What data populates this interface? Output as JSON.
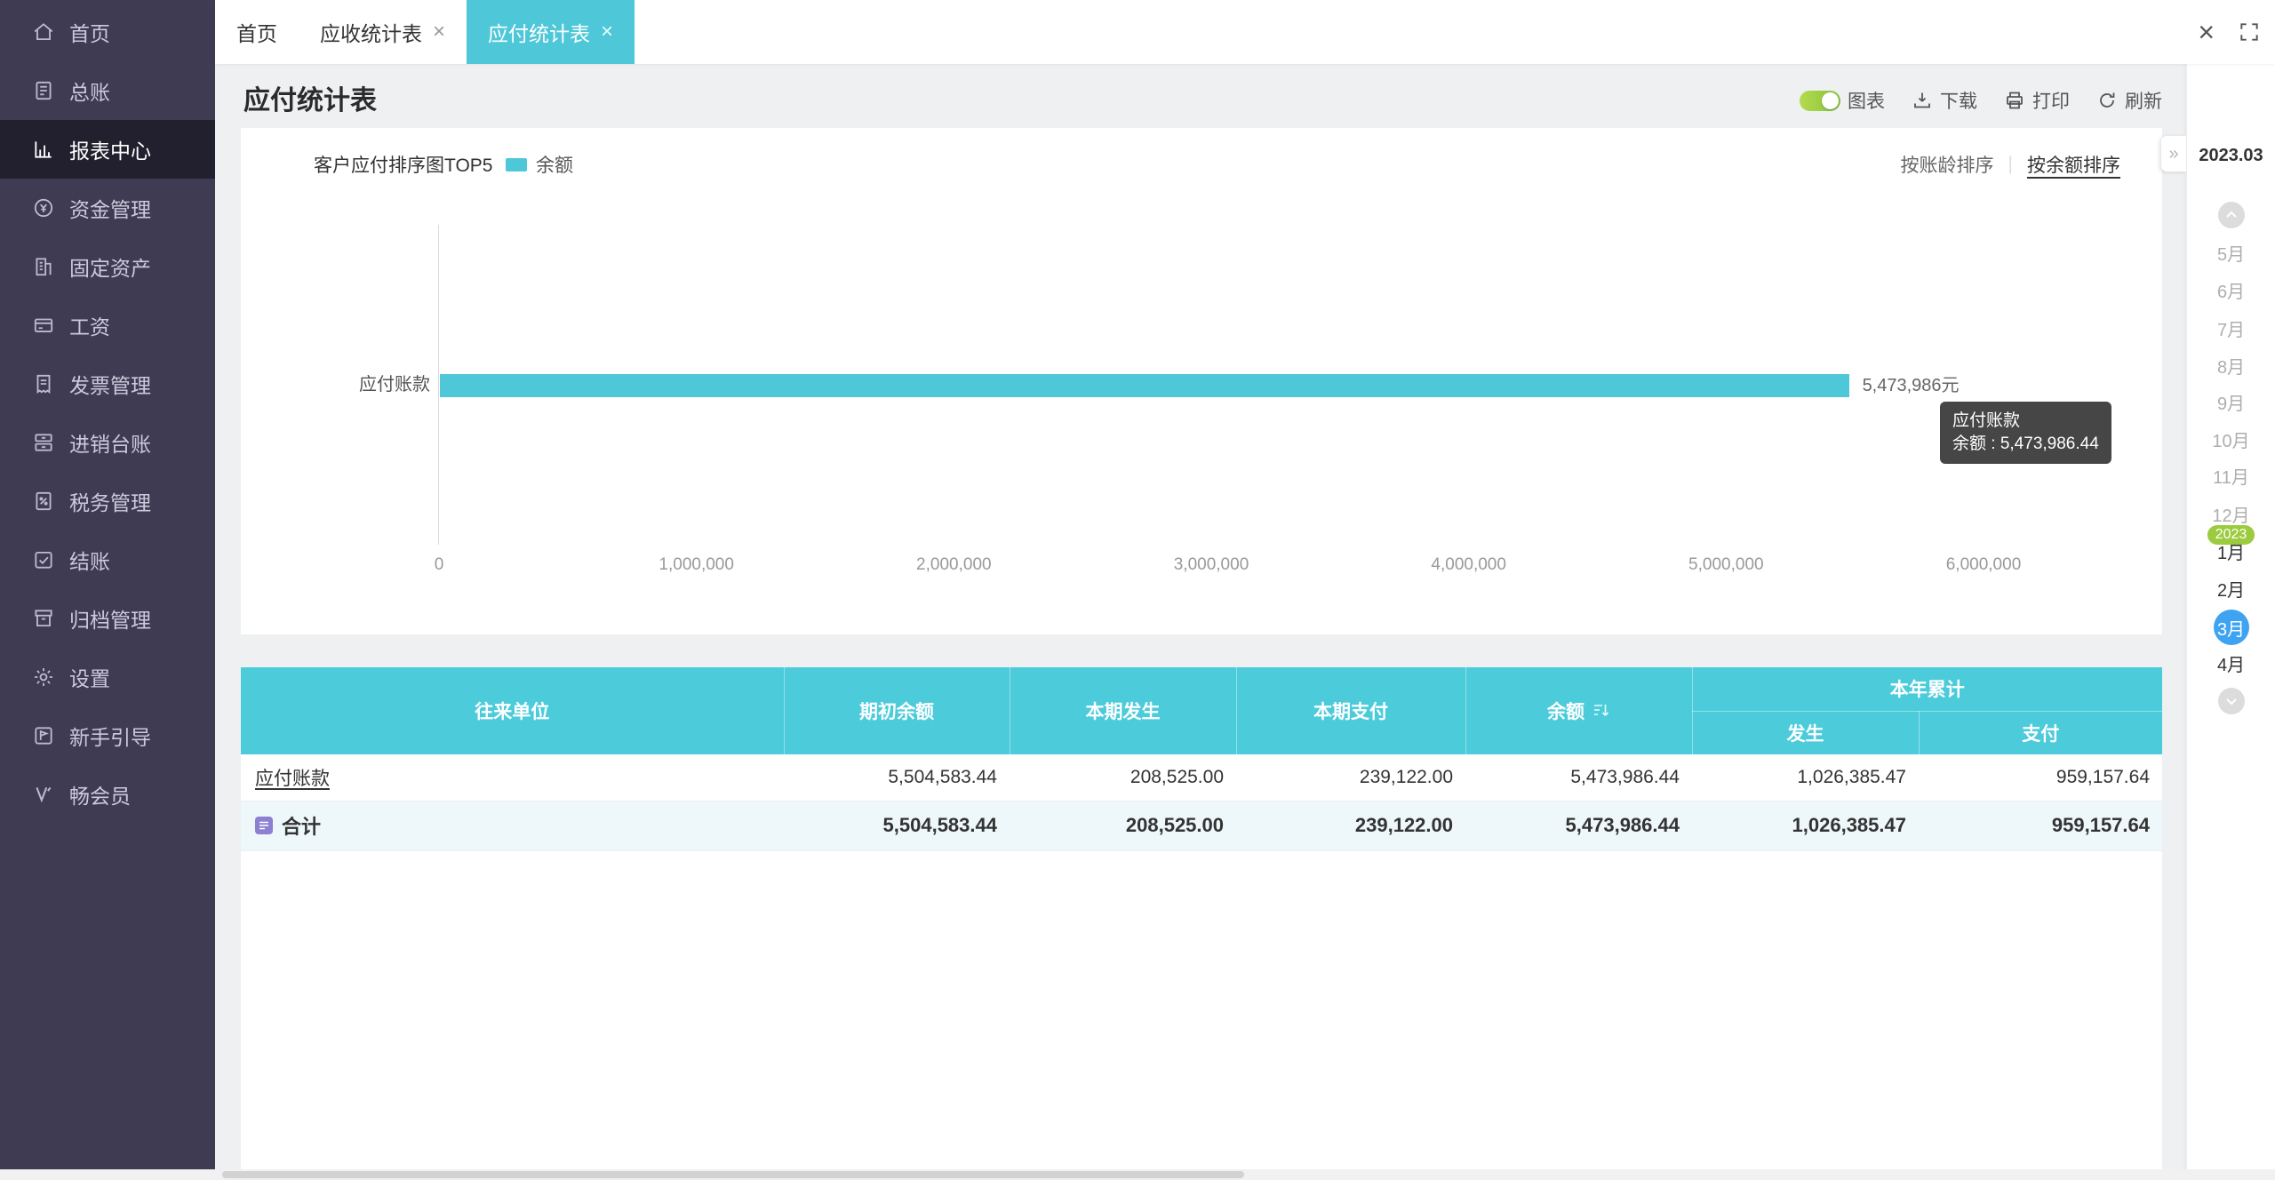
{
  "colors": {
    "accent": "#4ec7d8",
    "toggle_green": "#8cc63f",
    "selected_month_blue": "#3ea4f2",
    "year_badge_green": "#9ccb3f",
    "sidebar_bg": "#3e3b52"
  },
  "sidebar": {
    "items": [
      {
        "label": "首页",
        "icon": "home-icon"
      },
      {
        "label": "总账",
        "icon": "ledger-icon"
      },
      {
        "label": "报表中心",
        "icon": "report-icon"
      },
      {
        "label": "资金管理",
        "icon": "fund-icon"
      },
      {
        "label": "固定资产",
        "icon": "asset-icon"
      },
      {
        "label": "工资",
        "icon": "payroll-icon"
      },
      {
        "label": "发票管理",
        "icon": "invoice-icon"
      },
      {
        "label": "进销台账",
        "icon": "inventory-icon"
      },
      {
        "label": "税务管理",
        "icon": "tax-icon"
      },
      {
        "label": "结账",
        "icon": "closing-icon"
      },
      {
        "label": "归档管理",
        "icon": "archive-icon"
      },
      {
        "label": "设置",
        "icon": "settings-icon"
      },
      {
        "label": "新手引导",
        "icon": "guide-icon"
      },
      {
        "label": "畅会员",
        "icon": "member-icon"
      }
    ]
  },
  "tabbar": {
    "tabs": [
      {
        "label": "首页",
        "close": ""
      },
      {
        "label": "应收统计表",
        "close": "×"
      },
      {
        "label": "应付统计表",
        "close": "×"
      }
    ],
    "window_close_glyph": "×"
  },
  "page": {
    "title": "应付统计表",
    "toggle_label": "图表",
    "download_label": "下载",
    "print_label": "打印",
    "refresh_label": "刷新"
  },
  "chart_card": {
    "title": "客户应付排序图TOP5",
    "legend_label": "余额",
    "sort_by_age": "按账龄排序",
    "sort_sep": "|",
    "sort_by_balance": "按余额排序",
    "bar_value_label": "5,473,986元",
    "tooltip_title": "应付账款",
    "tooltip_line": "余额 : 5,473,986.44"
  },
  "chart_data": {
    "type": "bar",
    "orientation": "horizontal",
    "title": "客户应付排序图TOP5",
    "categories": [
      "应付账款"
    ],
    "series": [
      {
        "name": "余额",
        "values": [
          5473986.44
        ]
      }
    ],
    "xlim": [
      0,
      6000000
    ],
    "x_ticks": [
      "0",
      "1,000,000",
      "2,000,000",
      "3,000,000",
      "4,000,000",
      "5,000,000",
      "6,000,000"
    ],
    "grid": false,
    "legend_position": "top"
  },
  "table": {
    "col_company": "往来单位",
    "col_opening": "期初余额",
    "col_incurred": "本期发生",
    "col_paid": "本期支付",
    "col_balance": "余额",
    "col_ytd": "本年累计",
    "col_ytd_incurred": "发生",
    "col_ytd_paid": "支付",
    "rows": [
      {
        "company": "应付账款",
        "cells": [
          "5,504,583.44",
          "208,525.00",
          "239,122.00",
          "5,473,986.44",
          "1,026,385.47",
          "959,157.64"
        ]
      }
    ],
    "total": {
      "label": "合计",
      "cells": [
        "5,504,583.44",
        "208,525.00",
        "239,122.00",
        "5,473,986.44",
        "1,026,385.47",
        "959,157.64"
      ]
    }
  },
  "month_panel": {
    "current": "2023.03",
    "handle_glyph": "»",
    "prev_months": [
      "5月",
      "6月",
      "7月",
      "8月",
      "9月",
      "10月",
      "11月",
      "12月"
    ],
    "year_badge": "2023",
    "cur_months": [
      "1月",
      "2月",
      "3月",
      "4月"
    ],
    "selected_month": "3月"
  }
}
